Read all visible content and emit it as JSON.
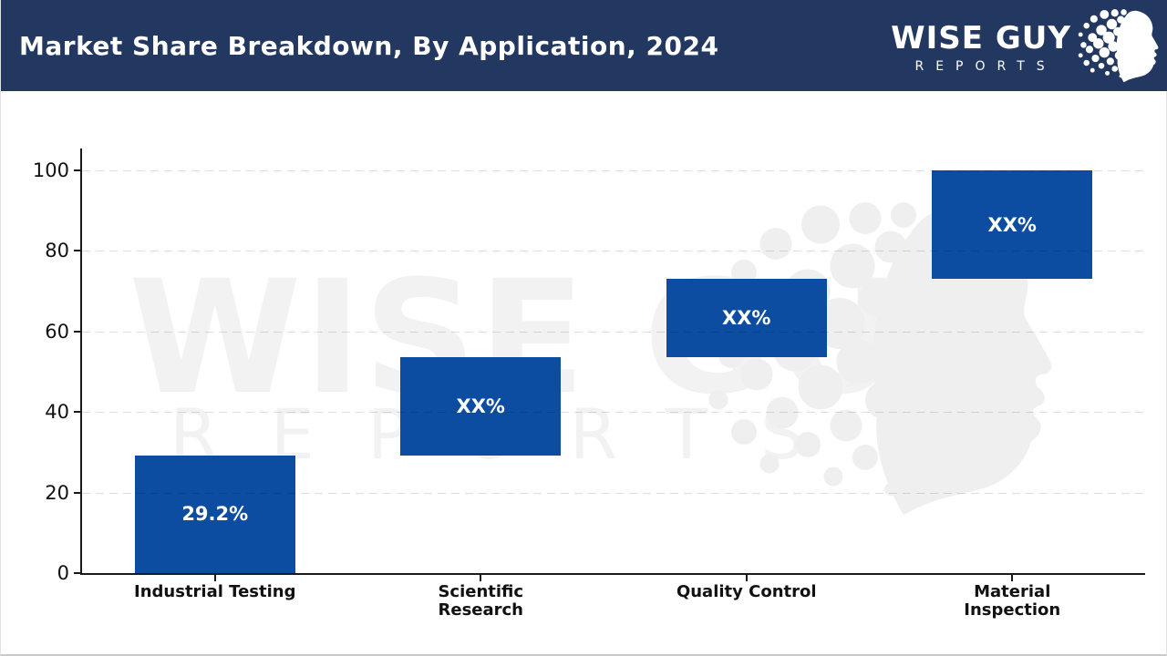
{
  "header": {
    "title": "Market Share Breakdown, By Application, 2024",
    "bg_color": "#233861",
    "logo": {
      "line1": "WISE GUY",
      "line2": "REPORTS"
    }
  },
  "watermark": {
    "line1": "WISE GUY",
    "line2": "REPORTS"
  },
  "chart_data": {
    "type": "bar",
    "subtype": "waterfall",
    "title": "Market Share Breakdown, By Application, 2024",
    "categories": [
      "Industrial Testing",
      "Scientific\nResearch",
      "Quality Control",
      "Material\nInspection"
    ],
    "series": [
      {
        "name": "Market Share",
        "starts": [
          0,
          29.2,
          53.6,
          73
        ],
        "ends": [
          29.2,
          53.6,
          73,
          100
        ]
      }
    ],
    "bar_labels": [
      "29.2%",
      "XX%",
      "XX%",
      "XX%"
    ],
    "ylabel": "",
    "xlabel": "",
    "ylim": [
      0,
      105
    ],
    "yticks": [
      0,
      20,
      40,
      60,
      80,
      100
    ],
    "grid": "horizontal-dashed",
    "legend": "none",
    "bar_color": "#0c4da2",
    "axis_color": "#1a1a1a",
    "gridline_alpha": 0.13
  }
}
